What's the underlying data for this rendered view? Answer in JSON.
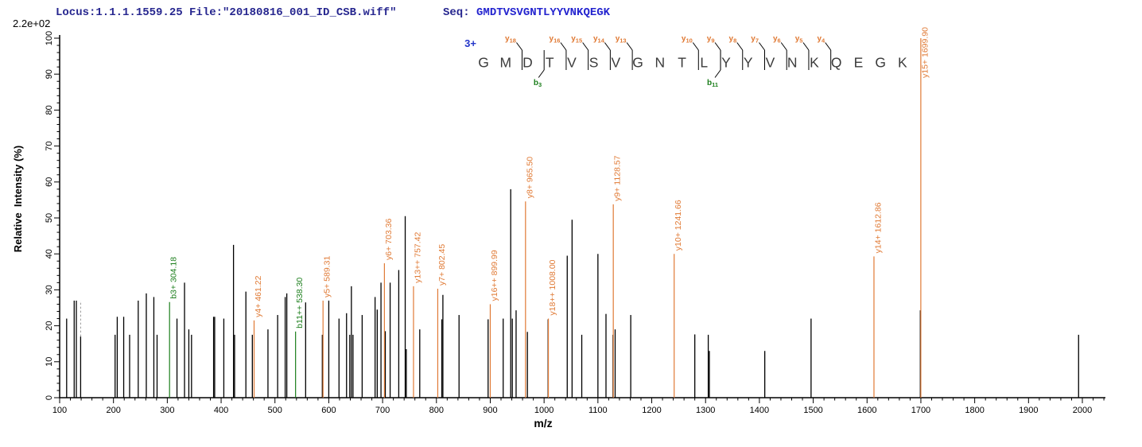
{
  "header": {
    "locus_file": "Locus:1.1.1.1559.25 File:\"20180816_001_ID_CSB.wiff\"",
    "seq_label": "Seq: ",
    "seq_value": "GMDTVSVGNTLYYVNKQEGK"
  },
  "plot": {
    "top_scale_label": "2.2e+02",
    "ylabel": "Relative  Intensity (%)",
    "xlabel": "m/z"
  },
  "ladder": {
    "charge_label": "3+",
    "sequence": [
      "G",
      "M",
      "D",
      "T",
      "V",
      "S",
      "V",
      "G",
      "N",
      "T",
      "L",
      "Y",
      "Y",
      "V",
      "N",
      "K",
      "Q",
      "E",
      "G",
      "K"
    ],
    "ions": [
      {
        "ion": "y",
        "num": "18",
        "gap": 2
      },
      {
        "ion": "b",
        "num": "3",
        "gap": 3
      },
      {
        "ion": "y",
        "num": "16",
        "gap": 4
      },
      {
        "ion": "y",
        "num": "15",
        "gap": 5
      },
      {
        "ion": "y",
        "num": "14",
        "gap": 6
      },
      {
        "ion": "y",
        "num": "13",
        "gap": 7
      },
      {
        "ion": "y",
        "num": "10",
        "gap": 10
      },
      {
        "ion": "y",
        "num": "9",
        "gap": 11
      },
      {
        "ion": "b",
        "num": "11",
        "gap": 11
      },
      {
        "ion": "y",
        "num": "8",
        "gap": 12
      },
      {
        "ion": "y",
        "num": "7",
        "gap": 13
      },
      {
        "ion": "y",
        "num": "6",
        "gap": 14
      },
      {
        "ion": "y",
        "num": "5",
        "gap": 15
      },
      {
        "ion": "y",
        "num": "4",
        "gap": 16
      }
    ]
  },
  "chart_data": {
    "type": "bar",
    "subtype": "ms2-stick-spectrum",
    "title": "",
    "xlabel": "m/z",
    "ylabel": "Relative  Intensity (%)",
    "xlim": [
      100,
      2040
    ],
    "ylim": [
      0,
      100
    ],
    "x_major_tick_step": 100,
    "x_minor_tick_step": 20,
    "y_major_tick_step": 10,
    "y_minor_tick_step": 2,
    "y_axis_top_scale_label": "2.2e+02",
    "grid": false,
    "peaks": [
      [
        113,
        22
      ],
      [
        127,
        27
      ],
      [
        131,
        27
      ],
      [
        139,
        17
      ],
      [
        203,
        17.5
      ],
      [
        207,
        22.5
      ],
      [
        219,
        22.5
      ],
      [
        230,
        17.5
      ],
      [
        246,
        27
      ],
      [
        261,
        29
      ],
      [
        275,
        28
      ],
      [
        281,
        17.5
      ],
      [
        318,
        22
      ],
      [
        332,
        32
      ],
      [
        340,
        19
      ],
      [
        345,
        17.5
      ],
      [
        386,
        22.5
      ],
      [
        388,
        22.5
      ],
      [
        405,
        22
      ],
      [
        423,
        42.5
      ],
      [
        425,
        17.5
      ],
      [
        446,
        29.5
      ],
      [
        458,
        17.5
      ],
      [
        487,
        19
      ],
      [
        505,
        23
      ],
      [
        519,
        28
      ],
      [
        522,
        29
      ],
      [
        557,
        26.5
      ],
      [
        588,
        17.5
      ],
      [
        600,
        27
      ],
      [
        619,
        22
      ],
      [
        633,
        23.5
      ],
      [
        639,
        17.5
      ],
      [
        642,
        31
      ],
      [
        645,
        17.5
      ],
      [
        662,
        23
      ],
      [
        686,
        28
      ],
      [
        690,
        24.5
      ],
      [
        697,
        32
      ],
      [
        705,
        18.5
      ],
      [
        714,
        32
      ],
      [
        730,
        35.5
      ],
      [
        742,
        50.5
      ],
      [
        744,
        13.5
      ],
      [
        769,
        19
      ],
      [
        810,
        21.8
      ],
      [
        812,
        28.6
      ],
      [
        842,
        23
      ],
      [
        896,
        21.8
      ],
      [
        924,
        22
      ],
      [
        938,
        58
      ],
      [
        941,
        22
      ],
      [
        948,
        24.3
      ],
      [
        969,
        18.3
      ],
      [
        1007.5,
        21.8
      ],
      [
        1043,
        39.5
      ],
      [
        1052,
        49.5
      ],
      [
        1070,
        17.5
      ],
      [
        1100,
        40
      ],
      [
        1115,
        23.3
      ],
      [
        1128,
        17.5
      ],
      [
        1132,
        19
      ],
      [
        1161,
        23
      ],
      [
        1280,
        17.6
      ],
      [
        1305,
        17.5
      ],
      [
        1307,
        13
      ],
      [
        1410,
        13
      ],
      [
        1496,
        22
      ],
      [
        1699,
        24.3
      ],
      [
        1993,
        17.5
      ]
    ],
    "annotated_peaks": [
      {
        "label": "b3+ 304.18",
        "ion": "b",
        "mz": 304.18,
        "intensity": 26.6
      },
      {
        "label": "y4+ 461.22",
        "ion": "y",
        "mz": 461.22,
        "intensity": 21.5
      },
      {
        "label": "b11++ 538.30",
        "ion": "b",
        "mz": 538.3,
        "intensity": 18.4
      },
      {
        "label": "y5+ 589.31",
        "ion": "y",
        "mz": 589.31,
        "intensity": 27
      },
      {
        "label": "y6+ 703.36",
        "ion": "y",
        "mz": 703.36,
        "intensity": 37.4
      },
      {
        "label": "y13++ 757.42",
        "ion": "y",
        "mz": 757.42,
        "intensity": 31
      },
      {
        "label": "y7+ 802.45",
        "ion": "y",
        "mz": 802.45,
        "intensity": 30.3
      },
      {
        "label": "y16++ 899.99",
        "ion": "y",
        "mz": 899.99,
        "intensity": 26
      },
      {
        "label": "y8+ 965.50",
        "ion": "y",
        "mz": 965.5,
        "intensity": 54.6
      },
      {
        "label": "y18++ 1008.00",
        "ion": "y",
        "mz": 1008.0,
        "intensity": 22
      },
      {
        "label": "y9+ 1128.57",
        "ion": "y",
        "mz": 1128.57,
        "intensity": 53.8
      },
      {
        "label": "y10+ 1241.66",
        "ion": "y",
        "mz": 1241.66,
        "intensity": 40
      },
      {
        "label": "y14+ 1612.86",
        "ion": "y",
        "mz": 1612.86,
        "intensity": 39.3
      },
      {
        "label": "y15+ 1699.90",
        "ion": "y",
        "mz": 1699.9,
        "intensity": 100
      }
    ],
    "dashed_peak": {
      "mz": 139,
      "solid_intensity": 17,
      "dashed_to_intensity": 27
    },
    "colors": {
      "y_ion": "#E07A35",
      "b_ion": "#1B7E1B",
      "peak": "#000000",
      "dashed": "#9a9a9a"
    }
  }
}
